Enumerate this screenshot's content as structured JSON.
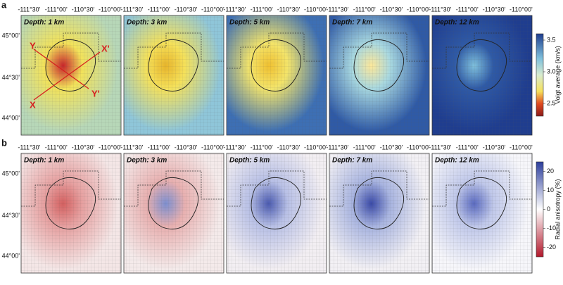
{
  "panel_rows": [
    {
      "label": "a",
      "depths": [
        "Depth: 1 km",
        "Depth: 3 km",
        "Depth: 5 km",
        "Depth: 7 km",
        "Depth: 12 km"
      ]
    },
    {
      "label": "b",
      "depths": [
        "Depth: 1 km",
        "Depth: 3 km",
        "Depth: 5 km",
        "Depth: 7 km",
        "Depth: 12 km"
      ]
    }
  ],
  "longitude_ticks": [
    "-111°30'",
    "-111°00'",
    "-110°30'",
    "-110°00'"
  ],
  "latitude_ticks": [
    "45°00'",
    "44°30'",
    "44°00'"
  ],
  "profile_labels": [
    "X",
    "X'",
    "Y",
    "Y'"
  ],
  "colorbars": [
    {
      "label": "Voigt average (km/s)",
      "range": [
        2.3,
        3.6
      ],
      "ticks": [
        2.5,
        {
          "value": 3,
          "label": "3.0"
        },
        3.5
      ]
    },
    {
      "label": "Radial anisotropy (%)",
      "range": [
        -25,
        25
      ],
      "ticks": [
        -20,
        -10,
        0,
        10,
        20
      ]
    }
  ]
}
